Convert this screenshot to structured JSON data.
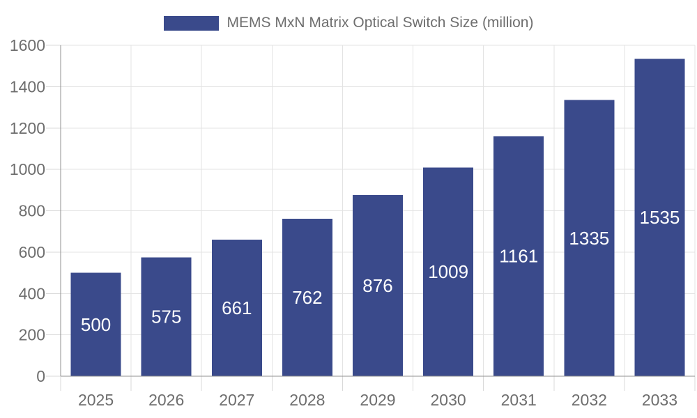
{
  "legend": {
    "label": "MEMS MxN Matrix Optical Switch Size (million)"
  },
  "chart_data": {
    "type": "bar",
    "title": "",
    "series_name": "MEMS MxN Matrix Optical Switch Size (million)",
    "categories": [
      "2025",
      "2026",
      "2027",
      "2028",
      "2029",
      "2030",
      "2031",
      "2032",
      "2033"
    ],
    "values": [
      500,
      575,
      661,
      762,
      876,
      1009,
      1161,
      1335,
      1535
    ],
    "bar_labels": [
      "500",
      "575",
      "661",
      "762",
      "876",
      "1009",
      "1161",
      "1335",
      "1535"
    ],
    "xlabel": "",
    "ylabel": "",
    "ylim": [
      0,
      1600
    ],
    "yticks": [
      0,
      200,
      400,
      600,
      800,
      1000,
      1200,
      1400,
      1600
    ],
    "grid": true,
    "legend_position": "top",
    "colors": {
      "bar": "#3A4A8B",
      "bar_value_label": "#FFFFFF",
      "grid": "#E3E3E3",
      "tick": "#D9D9D9",
      "axis": "#929292",
      "tick_text": "#6E6E6E",
      "background": "#FFFFFF"
    }
  }
}
